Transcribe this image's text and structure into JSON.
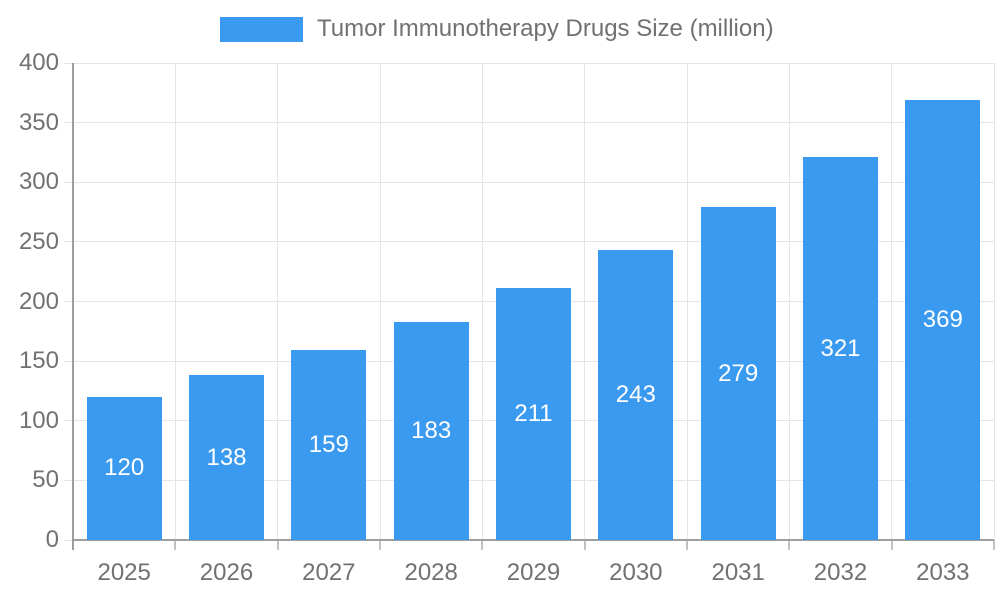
{
  "chart_data": {
    "type": "bar",
    "title": "Tumor Immunotherapy Drugs Size (million)",
    "categories": [
      "2025",
      "2026",
      "2027",
      "2028",
      "2029",
      "2030",
      "2031",
      "2032",
      "2033"
    ],
    "values": [
      120,
      138,
      159,
      183,
      211,
      243,
      279,
      321,
      369
    ],
    "xlabel": "",
    "ylabel": "",
    "ylim": [
      0,
      400
    ],
    "yticks": [
      0,
      50,
      100,
      150,
      200,
      250,
      300,
      350,
      400
    ],
    "grid": true,
    "legend_position": "top-center",
    "value_labels": "inside-center",
    "colors": {
      "bar": "#3a9af0",
      "value_label": "#ffffff",
      "axis_text": "#717171",
      "grid_line": "#e5e5e5",
      "axis_line": "#9e9e9e",
      "tick_mark": "#c2c2c2",
      "background": "#ffffff"
    }
  }
}
